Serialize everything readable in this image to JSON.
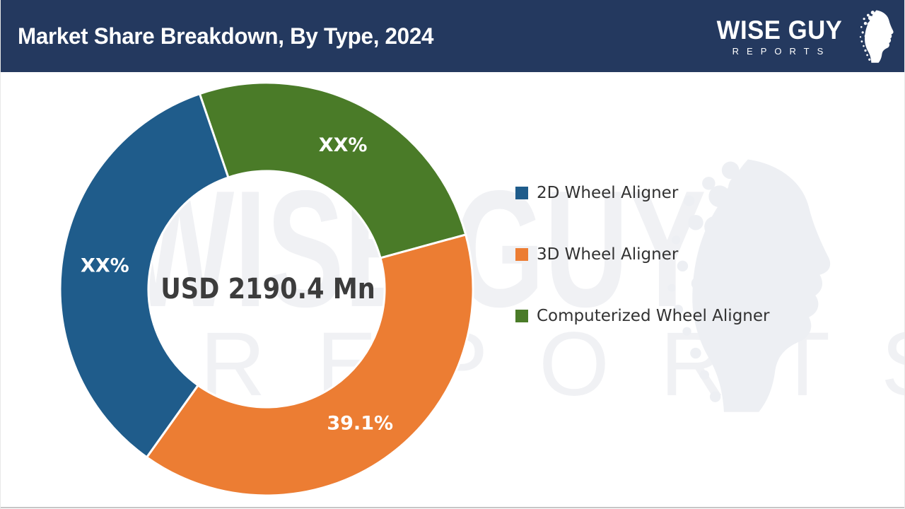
{
  "header": {
    "title": "Market Share Breakdown, By Type, 2024",
    "logo": {
      "line1": "WISE GUY",
      "line2": "REPORTS"
    }
  },
  "watermark": {
    "line1": "WISE GUY",
    "line2": "REPORTS"
  },
  "chart_data": {
    "type": "pie",
    "variant": "donut",
    "title": "Market Share Breakdown, By Type, 2024",
    "center_label": "USD 2190.4 Mn",
    "start_angle_deg": -18.9,
    "clockwise": true,
    "legend_position": "right",
    "segments": [
      {
        "name": "Computerized Wheel Aligner",
        "value_pct": 26.0,
        "display_label": "XX%",
        "color": "#4A7B28"
      },
      {
        "name": "3D Wheel Aligner",
        "value_pct": 39.1,
        "display_label": "39.1%",
        "color": "#EC7D33"
      },
      {
        "name": "2D Wheel Aligner",
        "value_pct": 34.9,
        "display_label": "XX%",
        "color": "#1F5C8B"
      }
    ],
    "legend": [
      {
        "label": "2D Wheel Aligner",
        "color": "#1F5C8B"
      },
      {
        "label": "3D Wheel Aligner",
        "color": "#EC7D33"
      },
      {
        "label": "Computerized Wheel Aligner",
        "color": "#4A7B28"
      }
    ]
  },
  "colors": {
    "header_bg": "#24395F",
    "page_bg": "#FFFFFF",
    "center_text": "#3C3C3C",
    "legend_text": "#323232",
    "segment_label_text": "#FFFFFF",
    "watermark": "#F0F1F4",
    "bottom_rule": "#C6C6C6"
  }
}
